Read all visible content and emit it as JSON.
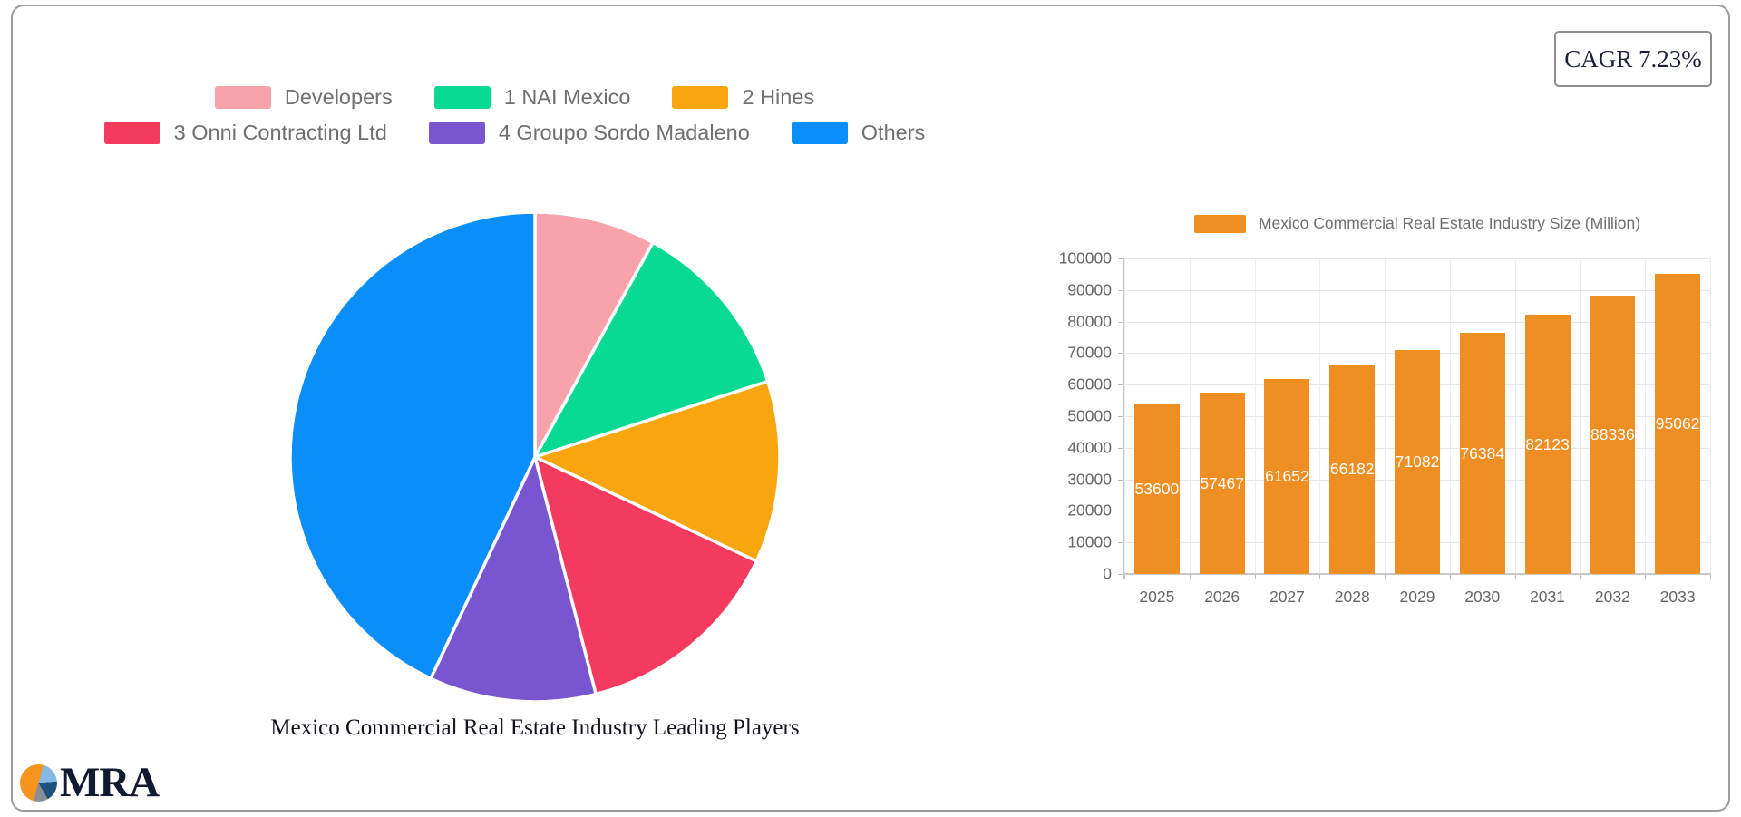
{
  "cagr_badge": {
    "label": "CAGR 7.23%"
  },
  "logo": {
    "text": "MRA",
    "icon": "pie-chart-logo-icon"
  },
  "chart_data": [
    {
      "type": "pie",
      "title": "Mexico Commercial Real Estate Industry Leading Players",
      "legend_position": "top",
      "start_angle_deg": 0,
      "direction": "clockwise",
      "slices": [
        {
          "label": "Developers",
          "value_pct": 8,
          "color": "#F7A3A9"
        },
        {
          "label": "1 NAI Mexico",
          "value_pct": 12,
          "color": "#08DA93"
        },
        {
          "label": "2 Hines",
          "value_pct": 12,
          "color": "#F9A60E"
        },
        {
          "label": "3 Onni Contracting Ltd",
          "value_pct": 14,
          "color": "#F43A5F"
        },
        {
          "label": "4 Groupo Sordo Madaleno",
          "value_pct": 11,
          "color": "#7A55D0"
        },
        {
          "label": "Others",
          "value_pct": 43,
          "color": "#0A8EF9"
        }
      ]
    },
    {
      "type": "bar",
      "legend_position": "top",
      "series": [
        {
          "name": "Mexico Commercial Real Estate Industry Size (Million)",
          "values": [
            53600,
            57467,
            61652,
            66182,
            71082,
            76384,
            82123,
            88336,
            95062
          ]
        }
      ],
      "categories": [
        "2025",
        "2026",
        "2027",
        "2028",
        "2029",
        "2030",
        "2031",
        "2032",
        "2033"
      ],
      "ylim": [
        0,
        100000
      ],
      "yticks": [
        0,
        10000,
        20000,
        30000,
        40000,
        50000,
        60000,
        70000,
        80000,
        90000,
        100000
      ],
      "bar_color": "#EF8E22",
      "value_label_color": "#FFFFFF",
      "grid": true
    }
  ]
}
